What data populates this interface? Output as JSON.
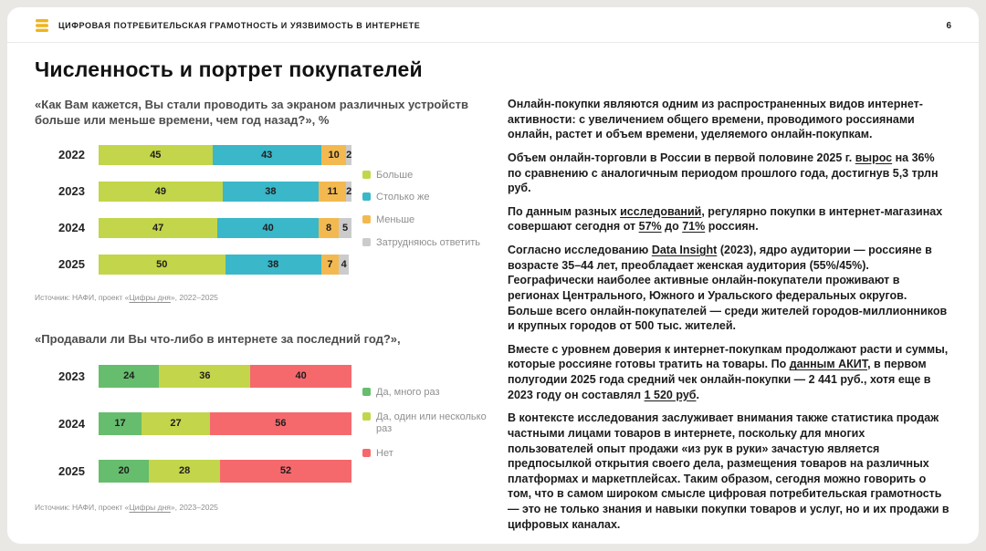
{
  "page": {
    "header": {
      "title": "ЦИФРОВАЯ ПОТРЕБИТЕЛЬСКАЯ ГРАМОТНОСТЬ И УЯЗВИМОСТЬ В ИНТЕРНЕТЕ",
      "page_number": "6"
    },
    "title": "Численность и портрет покупателей"
  },
  "colors": {
    "logo": "#efb41e",
    "more": "#c3d54a",
    "same": "#3ab7c9",
    "less": "#f3b950",
    "undecided": "#cbcbcb",
    "yes_many": "#66bd6d",
    "yes_few": "#c3d54a",
    "no": "#f5696c"
  },
  "chart_data": [
    {
      "type": "bar",
      "stacked": true,
      "orientation": "horizontal",
      "title": "«Как Вам кажется, Вы стали проводить за экраном различных устройств больше или меньше времени, чем год назад?», %",
      "categories": [
        "2022",
        "2023",
        "2024",
        "2025"
      ],
      "series": [
        {
          "name": "Больше",
          "color": "#c3d54a",
          "values": [
            45,
            49,
            47,
            50
          ]
        },
        {
          "name": "Столько же",
          "color": "#3ab7c9",
          "values": [
            43,
            38,
            40,
            38
          ]
        },
        {
          "name": "Меньше",
          "color": "#f3b950",
          "values": [
            10,
            11,
            8,
            7
          ]
        },
        {
          "name": "Затрудняюсь ответить",
          "color": "#cbcbcb",
          "values": [
            2,
            2,
            5,
            4
          ]
        }
      ],
      "xlim": [
        0,
        100
      ],
      "legend_position": "right",
      "source": [
        {
          "t": "Источник: НАФИ, проект «"
        },
        {
          "t": "Цифры дня",
          "u": true
        },
        {
          "t": "», 2022–2025"
        }
      ]
    },
    {
      "type": "bar",
      "stacked": true,
      "orientation": "horizontal",
      "title": "«Продавали ли Вы что-либо в интернете за последний год?»,",
      "categories": [
        "2023",
        "2024",
        "2025"
      ],
      "series": [
        {
          "name": "Да, много раз",
          "color": "#66bd6d",
          "values": [
            24,
            17,
            20
          ]
        },
        {
          "name": "Да, один или несколько раз",
          "color": "#c3d54a",
          "values": [
            36,
            27,
            28
          ]
        },
        {
          "name": "Нет",
          "color": "#f5696c",
          "values": [
            40,
            56,
            52
          ]
        }
      ],
      "xlim": [
        0,
        100
      ],
      "legend_position": "right",
      "source": [
        {
          "t": "Источник: НАФИ, проект «"
        },
        {
          "t": "Цифры дня",
          "u": true
        },
        {
          "t": "», 2023–2025"
        }
      ]
    }
  ],
  "article": {
    "paragraphs": [
      [
        {
          "t": "Онлайн-покупки являются одним из распространенных видов интернет-активности: с увеличением общего времени, проводимого россиянами онлайн, растет и объем времени, уделяемого онлайн-покупкам."
        }
      ],
      [
        {
          "t": "Объем онлайн-торговли в России в первой половине 2025 г. "
        },
        {
          "t": "вырос",
          "u": true
        },
        {
          "t": " на 36% по сравнению с аналогичным периодом прошлого года, достигнув 5,3 трлн руб."
        }
      ],
      [
        {
          "t": "По данным разных "
        },
        {
          "t": "исследований",
          "u": true
        },
        {
          "t": ", регулярно покупки в интернет-магазинах совершают сегодня от "
        },
        {
          "t": "57%",
          "u": true
        },
        {
          "t": " до "
        },
        {
          "t": "71%",
          "u": true
        },
        {
          "t": " россиян."
        }
      ],
      [
        {
          "t": "Согласно исследованию "
        },
        {
          "t": "Data Insight",
          "u": true
        },
        {
          "t": " (2023), ядро аудитории — россияне в возрасте 35–44 лет, преобладает женская аудитория (55%/45%). Географически наиболее активные онлайн-покупатели проживают в регионах Центрального, Южного и Уральского федеральных округов. Больше всего онлайн-покупателей — среди жителей городов-миллионников и крупных городов от 500 тыс. жителей."
        }
      ],
      [
        {
          "t": "Вместе с уровнем доверия к интернет-покупкам продолжают расти и суммы, которые россияне готовы тратить на товары. По "
        },
        {
          "t": "данным АКИТ",
          "u": true
        },
        {
          "t": ", в первом полугодии 2025 года средний чек онлайн-покупки — 2 441 руб., хотя еще в 2023 году он составлял "
        },
        {
          "t": "1 520 руб",
          "u": true
        },
        {
          "t": "."
        }
      ],
      [
        {
          "t": "В контексте исследования заслуживает внимания также статистика продаж частными лицами товаров в интернете, поскольку для многих пользователей опыт продажи «из рук в руки» зачастую является предпосылкой открытия своего дела, размещения товаров на различных платформах и маркетплейсах. Таким образом, сегодня можно говорить о том, что в самом широком смысле цифровая потребительская грамотность — это не только знания и навыки покупки товаров и услуг, но и их продажи в цифровых каналах."
        }
      ]
    ]
  }
}
